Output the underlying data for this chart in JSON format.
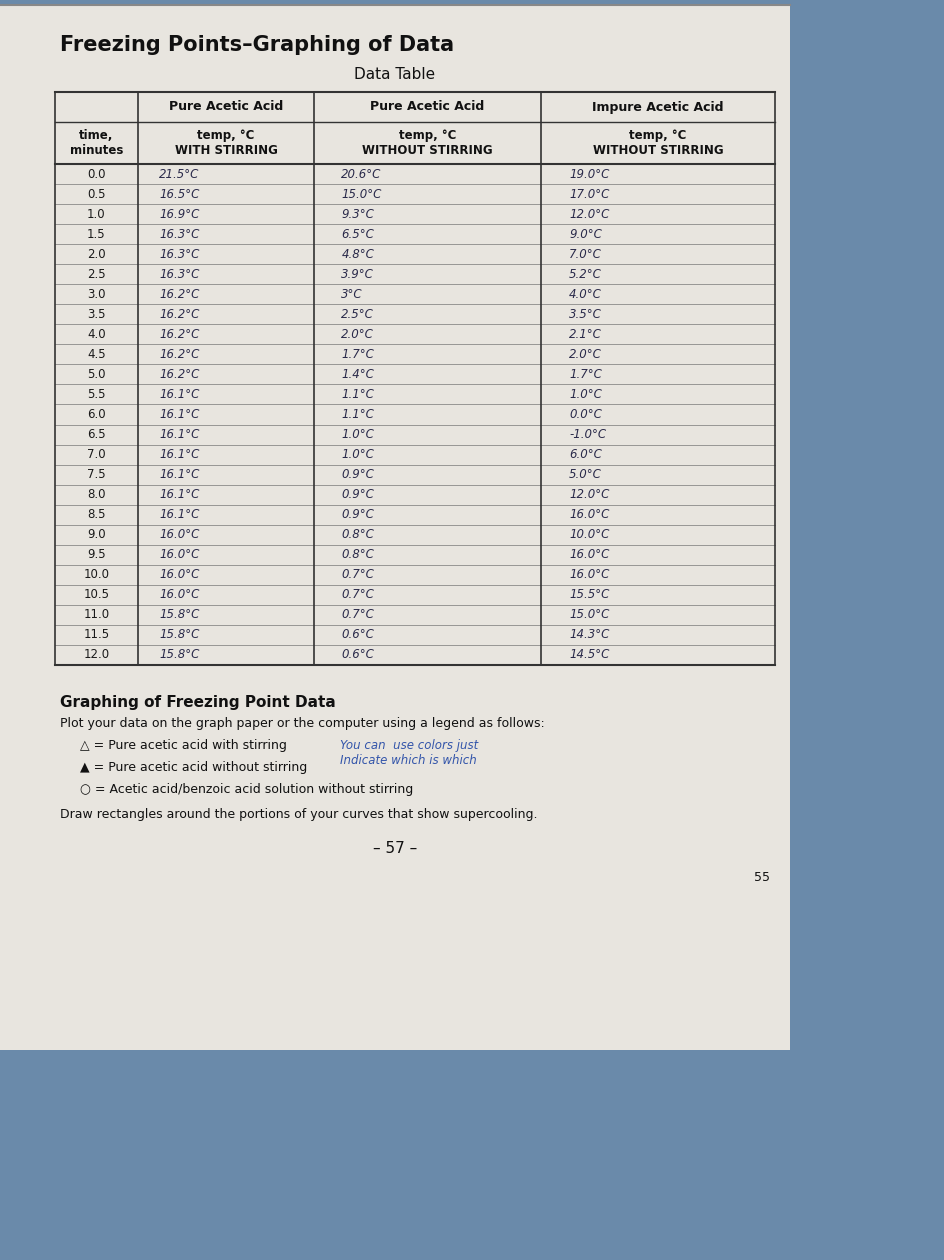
{
  "title": "Freezing Points–Graphing of Data",
  "subtitle": "Data Table",
  "bg_color": "#6a8aaa",
  "paper_bg": "#e8e5df",
  "col_headers_row1": [
    "",
    "Pure Acetic Acid",
    "Pure Acetic Acid",
    "Impure Acetic Acid"
  ],
  "col_headers_row2_0": "time,\nminutes",
  "col_headers_row2_1": "temp, °C\nWITH STIRRING",
  "col_headers_row2_2": "temp, °C\nWITHOUT STIRRING",
  "col_headers_row2_3": "temp, °C\nWITHOUT STIRRING",
  "time_values": [
    "0.0",
    "0.5",
    "1.0",
    "1.5",
    "2.0",
    "2.5",
    "3.0",
    "3.5",
    "4.0",
    "4.5",
    "5.0",
    "5.5",
    "6.0",
    "6.5",
    "7.0",
    "7.5",
    "8.0",
    "8.5",
    "9.0",
    "9.5",
    "10.0",
    "10.5",
    "11.0",
    "11.5",
    "12.0"
  ],
  "col1_values": [
    "21.5°C",
    "16.5°C",
    "16.9°C",
    "16.3°C",
    "16.3°C",
    "16.3°C",
    "16.2°C",
    "16.2°C",
    "16.2°C",
    "16.2°C",
    "16.2°C",
    "16.1°C",
    "16.1°C",
    "16.1°C",
    "16.1°C",
    "16.1°C",
    "16.1°C",
    "16.1°C",
    "16.0°C",
    "16.0°C",
    "16.0°C",
    "16.0°C",
    "15.8°C",
    "15.8°C",
    "15.8°C"
  ],
  "col2_values": [
    "20.6°C",
    "15.0°C",
    "9.3°C",
    "6.5°C",
    "4.8°C",
    "3.9°C",
    "3°C",
    "2.5°C",
    "2.0°C",
    "1.7°C",
    "1.4°C",
    "1.1°C",
    "1.1°C",
    "1.0°C",
    "1.0°C",
    "0.9°C",
    "0.9°C",
    "0.9°C",
    "0.8°C",
    "0.8°C",
    "0.7°C",
    "0.7°C",
    "0.7°C",
    "0.6°C",
    "0.6°C"
  ],
  "col3_values": [
    "19.0°C",
    "17.0°C",
    "12.0°C",
    "9.0°C",
    "7.0°C",
    "5.2°C",
    "4.0°C",
    "3.5°C",
    "2.1°C",
    "2.0°C",
    "1.7°C",
    "1.0°C",
    "0.0°C",
    "-1.0°C",
    "6.0°C",
    "5.0°C",
    "12.0°C",
    "16.0°C",
    "10.0°C",
    "16.0°C",
    "16.0°C",
    "15.5°C",
    "15.0°C",
    "14.3°C",
    "14.5°C"
  ],
  "graphing_title": "Graphing of Freezing Point Data",
  "graphing_text1": "Plot your data on the graph paper or the computer using a legend as follows:",
  "legend1": "△ = Pure acetic acid with stirring",
  "legend2": "▲ = Pure acetic acid without stirring",
  "legend3": "○ = Acetic acid/benzoic acid solution without stirring",
  "handwritten_note": "You can  use colors just\nIndicate which is which",
  "draw_text": "Draw rectangles around the portions of your curves that show supercooling.",
  "page_num_center": "– 57 –",
  "page_num_right": "55"
}
